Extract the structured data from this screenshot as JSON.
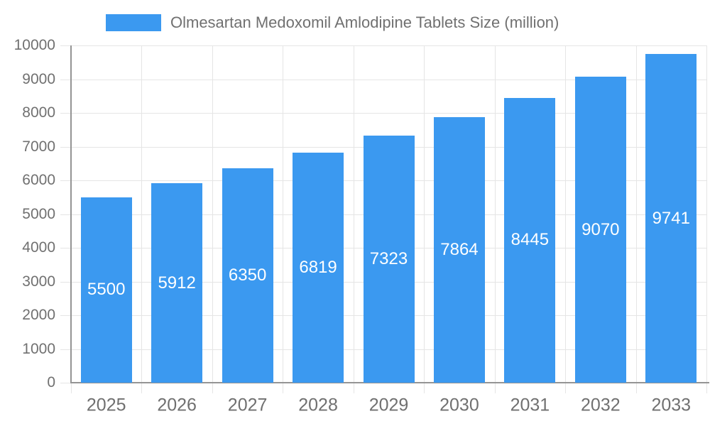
{
  "legend": {
    "label": "Olmesartan Medoxomil Amlodipine Tablets Size (million)"
  },
  "colors": {
    "bar": "#3B99F0",
    "grid_line": "#E5E5E5",
    "axis_line": "#949494",
    "tick_text": "#707070",
    "value_label_text": "#FFFFFF",
    "background": "#FFFFFF"
  },
  "chart_data": {
    "type": "bar",
    "title": "Olmesartan Medoxomil Amlodipine Tablets Size (million)",
    "categories": [
      "2025",
      "2026",
      "2027",
      "2028",
      "2029",
      "2030",
      "2031",
      "2032",
      "2033"
    ],
    "series": [
      {
        "name": "Olmesartan Medoxomil Amlodipine Tablets Size (million)",
        "values": [
          5500,
          5912,
          6350,
          6819,
          7323,
          7864,
          8445,
          9070,
          9741
        ]
      }
    ],
    "xlabel": "",
    "ylabel": "",
    "ylim": [
      0,
      10000
    ],
    "ytick_step": 1000,
    "yticks": [
      0,
      1000,
      2000,
      3000,
      4000,
      5000,
      6000,
      7000,
      8000,
      9000,
      10000
    ],
    "grid": true,
    "legend_position": "top-left",
    "value_label_position": "inside-center"
  }
}
